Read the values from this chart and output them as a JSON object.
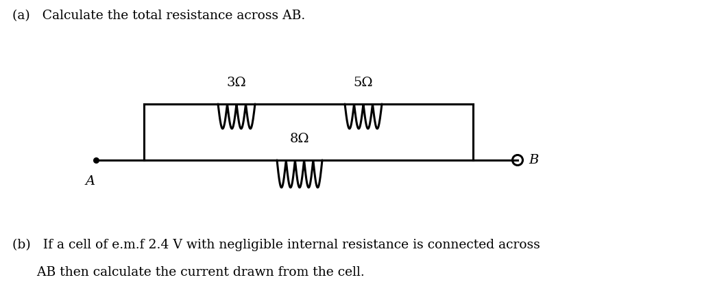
{
  "title_a": "(a)   Calculate the total resistance across AB.",
  "title_b": "(b)   If a cell of e.m.f 2.4 V with negligible internal resistance is connected across",
  "title_b2": "      AB then calculate the current drawn from the cell.",
  "bg_color": "#ffffff",
  "line_color": "#000000",
  "font_size_text": 13.5,
  "label_A": "A",
  "label_B": "B",
  "label_3ohm": "3Ω",
  "label_5ohm": "5Ω",
  "label_8ohm": "8Ω",
  "figsize": [
    10.24,
    4.34
  ],
  "dpi": 100
}
